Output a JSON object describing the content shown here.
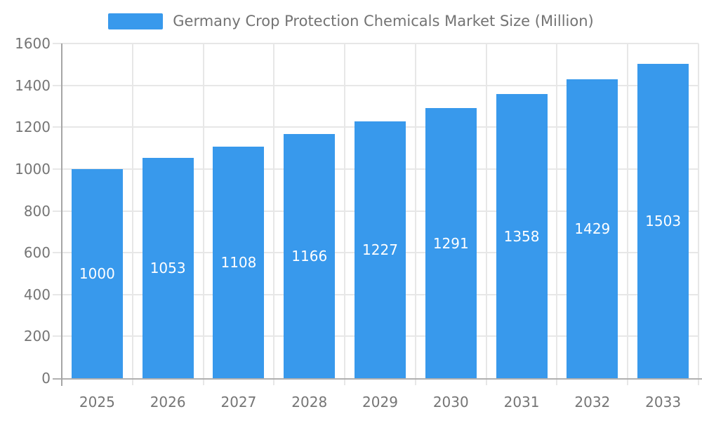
{
  "chart_data": {
    "type": "bar",
    "title": "Germany Crop Protection Chemicals Market Size (Million)",
    "legend_entries": [
      "Germany Crop Protection Chemicals Market Size (Million)"
    ],
    "legend_position": "top-center",
    "categories": [
      "2025",
      "2026",
      "2027",
      "2028",
      "2029",
      "2030",
      "2031",
      "2032",
      "2033"
    ],
    "values": [
      1000,
      1053,
      1108,
      1166,
      1227,
      1291,
      1358,
      1429,
      1503
    ],
    "xlabel": "",
    "ylabel": "",
    "ylim": [
      0,
      1600
    ],
    "yticks": [
      0,
      200,
      400,
      600,
      800,
      1000,
      1200,
      1400,
      1600
    ],
    "grid": true,
    "bar_value_labels_visible": true,
    "colors": {
      "bar": "#3899ec",
      "bar_value_text": "#ffffff",
      "grid": "#e7e7e7",
      "axis": "#a6a6a6",
      "baseline": "#b0b0b0",
      "tick_text": "#757575",
      "legend_text": "#737373"
    }
  }
}
